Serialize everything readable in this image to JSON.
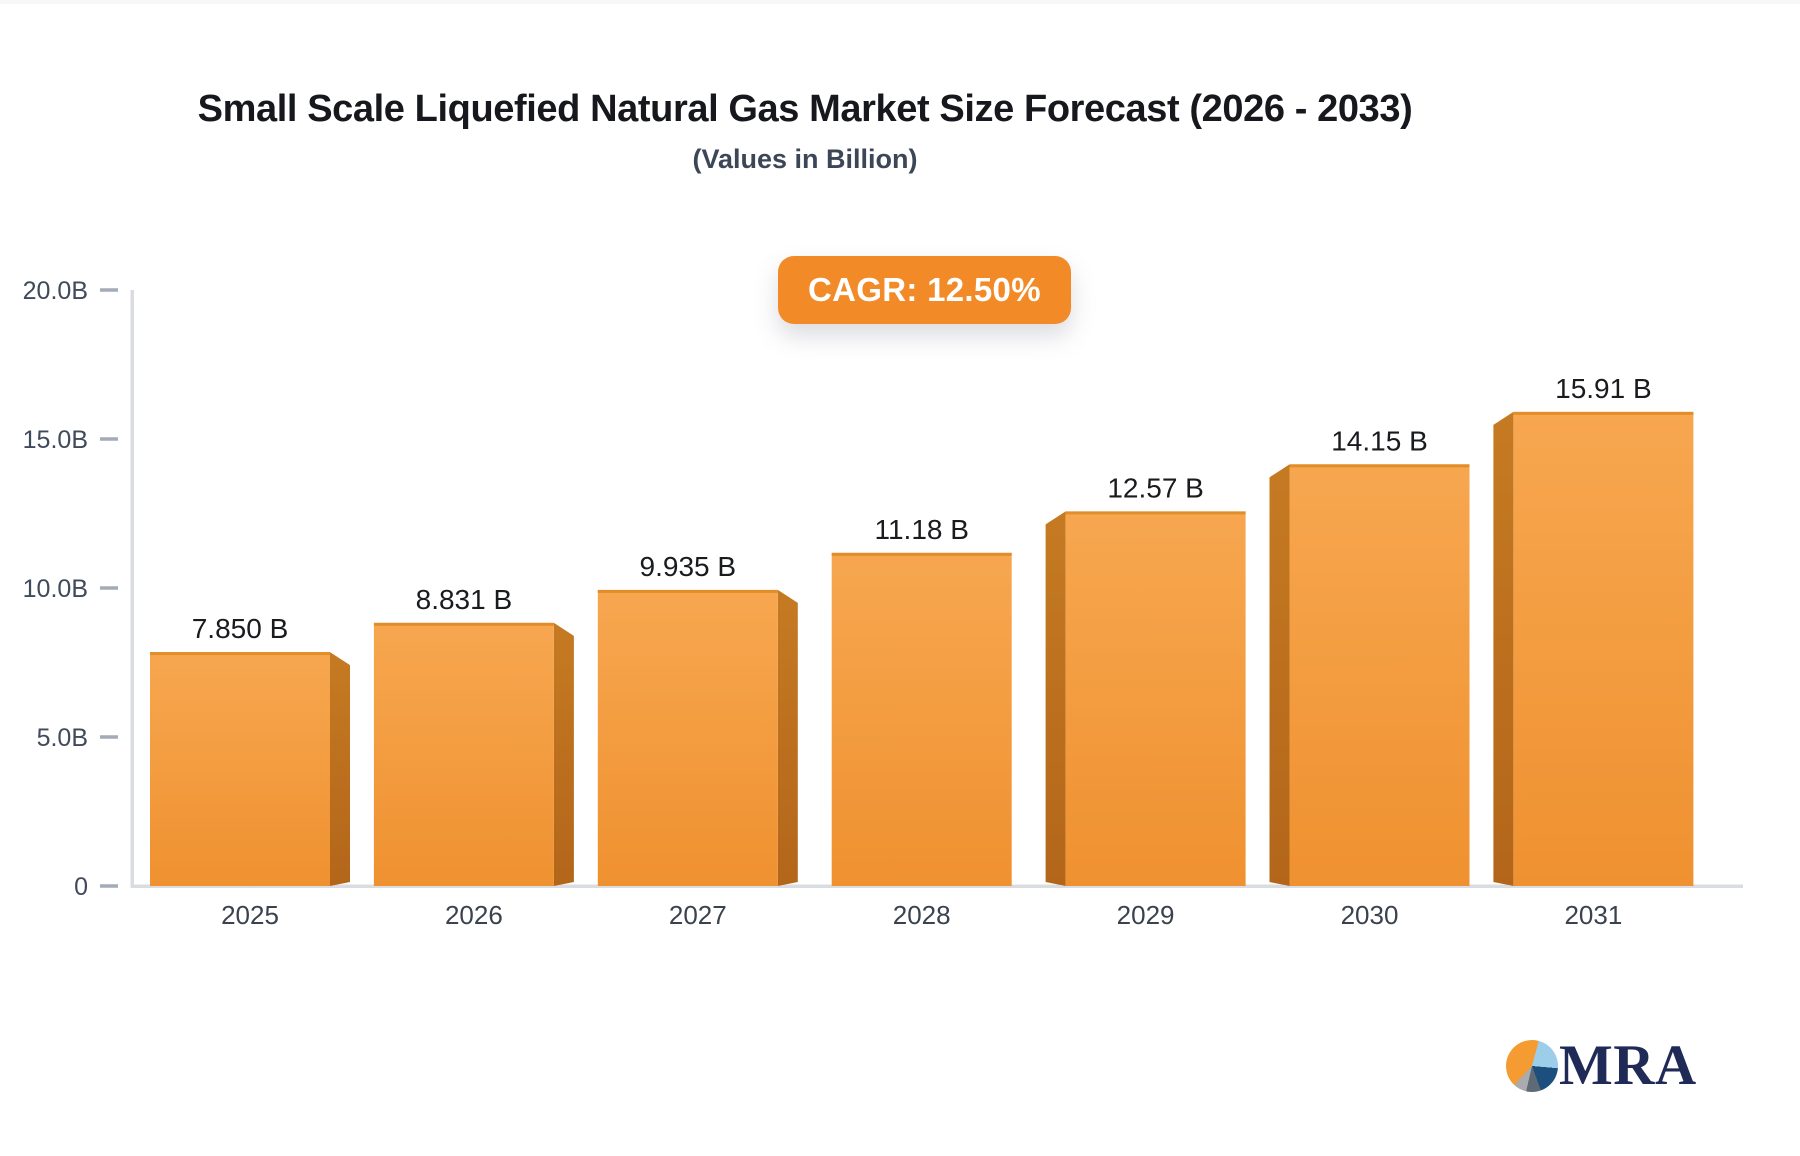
{
  "title": "Small Scale Liquefied Natural Gas Market Size Forecast (2026 - 2033)",
  "subtitle": "(Values in Billion)",
  "badge": {
    "label": "CAGR: 12.50%",
    "bg_color": "#F28B27",
    "text_color": "#FFFFFF"
  },
  "chart_data": {
    "type": "bar",
    "title": "Small Scale Liquefied Natural Gas Market Size Forecast (2026 - 2033)",
    "subtitle": "(Values in Billion)",
    "categories": [
      "2025",
      "2026",
      "2027",
      "2028",
      "2029",
      "2030",
      "2031"
    ],
    "values": [
      7.85,
      8.831,
      9.935,
      11.18,
      12.57,
      14.15,
      15.91
    ],
    "value_labels": [
      "7.850 B",
      "8.831 B",
      "9.935 B",
      "11.18 B",
      "12.57 B",
      "14.15 B",
      "15.91 B"
    ],
    "xlabel": "",
    "ylabel": "",
    "ylim": [
      0,
      20
    ],
    "y_tick_values": [
      0,
      5,
      10,
      15,
      20
    ],
    "y_tick_labels": [
      "0",
      "5.0B",
      "10.0B",
      "15.0B",
      "20.0B"
    ],
    "grid": false,
    "legend": "none",
    "style": "3d-extruded-bars-perspective-from-center",
    "bar_color_top": "#F7A750",
    "bar_color_bottom": "#EF9130",
    "bar_top_edge_color": "#E08B26",
    "bar_side_color_light": "#C57A22",
    "bar_side_color_dark": "#B3661A",
    "axis_line_color": "#D9DCE1",
    "tick_dash_color": "#A3ABB6",
    "y_label_color": "#3F4A5A",
    "x_label_color": "#39424E",
    "value_label_color": "#1A1B1E"
  },
  "logo": {
    "text": "MRA",
    "text_color": "#1F2A56",
    "pie_orange": "#F49B32",
    "pie_light_blue": "#9CCDE9",
    "pie_navy": "#1C4F7E",
    "pie_slate": "#5E6A76",
    "pie_gray": "#A9ABAE"
  }
}
